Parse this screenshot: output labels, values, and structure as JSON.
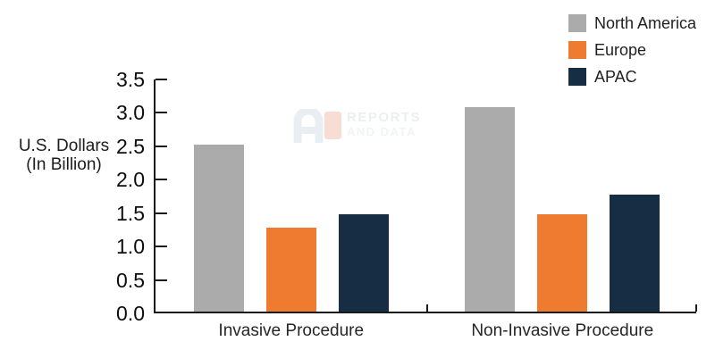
{
  "chart_data": {
    "type": "bar",
    "title": "",
    "categories": [
      "Invasive Procedure",
      "Non-Invasive Procedure"
    ],
    "series": [
      {
        "name": "North America",
        "color": "#ABABAB",
        "values": [
          2.5,
          3.05
        ]
      },
      {
        "name": "Europe",
        "color": "#EE7B30",
        "values": [
          1.25,
          1.45
        ]
      },
      {
        "name": "APAC",
        "color": "#162D44",
        "values": [
          1.45,
          1.75
        ]
      }
    ],
    "xlabel": "",
    "ylabel": "U.S. Dollars (In Billion)",
    "ylabel_lines": [
      "U.S. Dollars",
      "(In Billion)"
    ],
    "ylim": [
      0,
      3.5
    ],
    "ytick_step": 0.5,
    "yticks": [
      "0.0",
      "0.5",
      "1.0",
      "1.5",
      "2.0",
      "2.5",
      "3.0",
      "3.5"
    ],
    "legend_position": "top-right",
    "grid": false,
    "axis_color": "#1a1a1a"
  },
  "watermark": {
    "line1": "REPORTS",
    "line2": "AND DATA"
  }
}
